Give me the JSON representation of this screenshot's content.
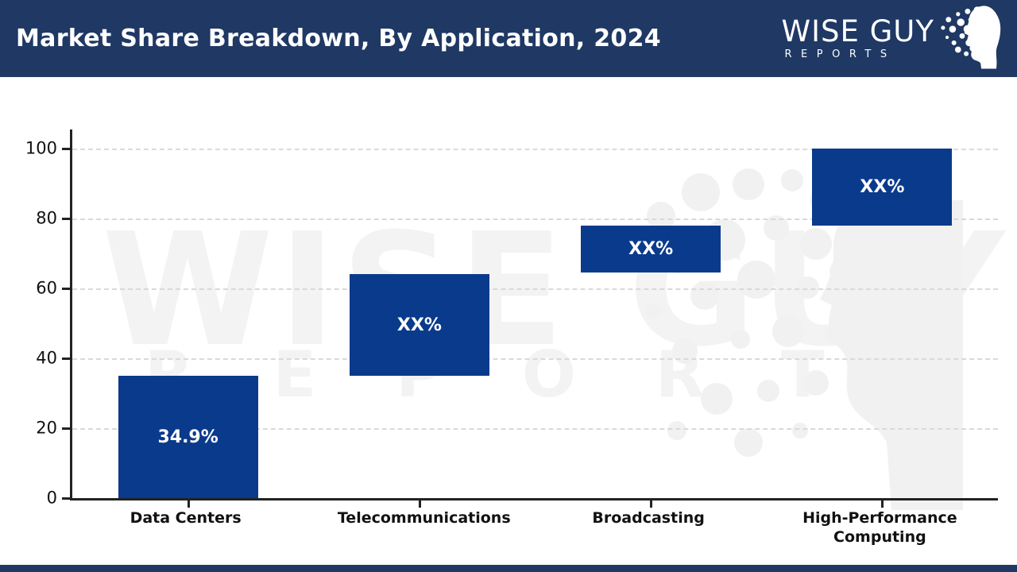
{
  "header": {
    "title": "Market Share Breakdown, By Application, 2024",
    "logo_line1": "WISE GUY",
    "logo_line2": "REPORTS"
  },
  "watermark": {
    "line1": "WISE GUY",
    "line2": "REPORTS"
  },
  "colors": {
    "header_bg": "#1f3864",
    "footer_bg": "#1f3864",
    "bar": "#0a3a8c",
    "bar_label": "#ffffff",
    "grid": "#d9d9d9",
    "axis": "#222222",
    "watermark": "#f3f3f3"
  },
  "chart_data": {
    "type": "bar",
    "subtype": "waterfall-floating-bars",
    "title": "Market Share Breakdown, By Application, 2024",
    "categories": [
      "Data Centers",
      "Telecommunications",
      "Broadcasting",
      "High-Performance Computing"
    ],
    "segments": [
      {
        "category": "Data Centers",
        "start": 0,
        "end": 34.9,
        "label": "34.9%"
      },
      {
        "category": "Telecommunications",
        "start": 35,
        "end": 64,
        "label": "XX%"
      },
      {
        "category": "Broadcasting",
        "start": 64.5,
        "end": 78,
        "label": "XX%"
      },
      {
        "category": "High-Performance Computing",
        "start": 78,
        "end": 100,
        "label": "XX%"
      }
    ],
    "xlabel": "",
    "ylabel": "",
    "ylim": [
      0,
      100
    ],
    "yticks": [
      0,
      20,
      40,
      60,
      80,
      100
    ],
    "grid": "horizontal dashed",
    "legend": "none"
  }
}
